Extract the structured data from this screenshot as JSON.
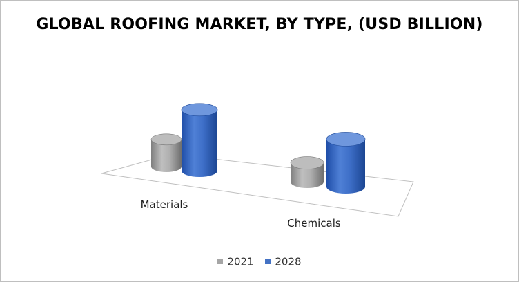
{
  "chart_data": {
    "type": "bar",
    "title": "GLOBAL ROOFING MARKET, BY TYPE, (USD BILLION)",
    "categories": [
      "Materials",
      "Chemicals"
    ],
    "series": [
      {
        "name": "2021",
        "values": [
          40,
          28
        ]
      },
      {
        "name": "2028",
        "values": [
          90,
          70
        ]
      }
    ],
    "legend_position": "bottom",
    "grid": false,
    "style": "3d-cylinder"
  },
  "colors": {
    "series_2021": "#a6a6a6",
    "series_2028": "#4472c4"
  }
}
